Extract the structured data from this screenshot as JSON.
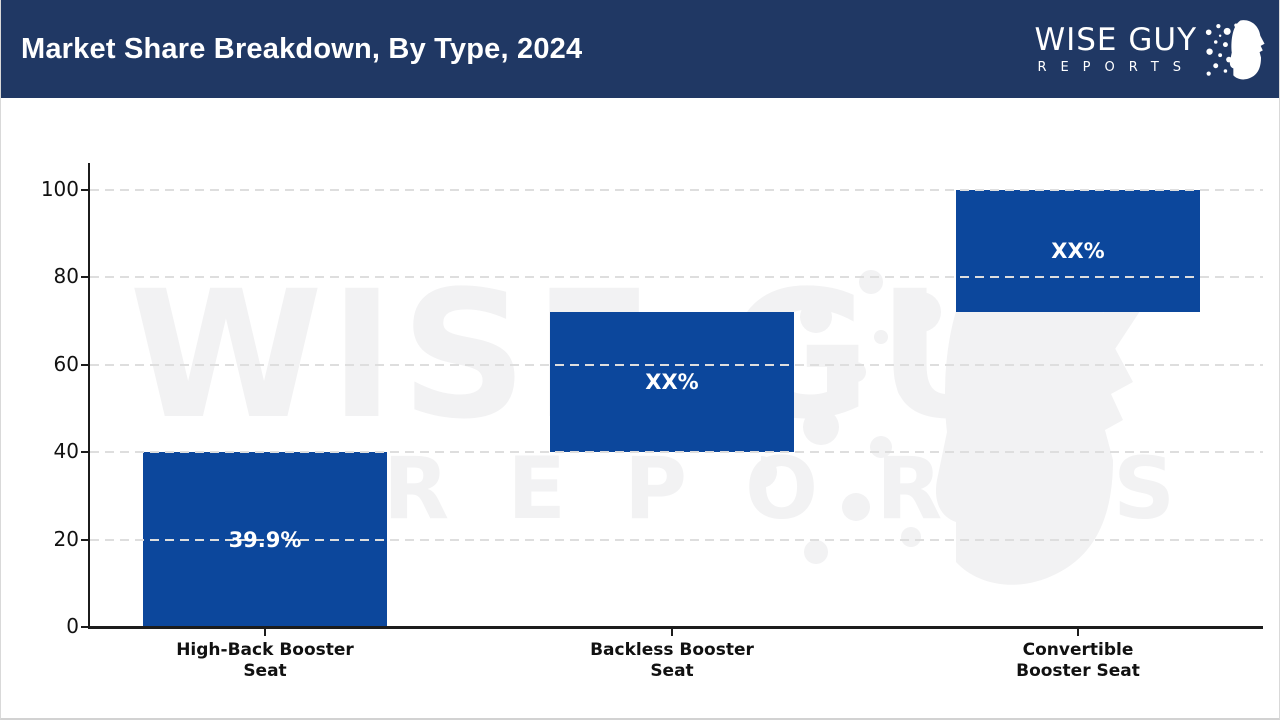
{
  "page": {
    "background": "#ffffff",
    "border_color": "#d9d9d9"
  },
  "header": {
    "title": "Market Share Breakdown, By Type, 2024",
    "bg_color": "#203864",
    "logo": {
      "line1": "WISE GUY",
      "line2": "REPORTS"
    }
  },
  "watermark": {
    "line1": "WISE GUY",
    "line2": "REPORTS",
    "color": "#f2f2f3"
  },
  "chart_data": {
    "type": "bar",
    "subtype": "waterfall",
    "title": "Market Share Breakdown, By Type, 2024",
    "categories": [
      [
        "High-Back Booster",
        "Seat"
      ],
      [
        "Backless Booster",
        "Seat"
      ],
      [
        "Convertible",
        "Booster Seat"
      ]
    ],
    "segments": [
      {
        "start": 0,
        "end": 39.9,
        "label": "39.9%"
      },
      {
        "start": 39.9,
        "end": 72,
        "label": "XX%"
      },
      {
        "start": 72,
        "end": 100,
        "label": "XX%"
      }
    ],
    "ylim": [
      0,
      100
    ],
    "yticks": [
      0,
      20,
      40,
      60,
      80,
      100
    ],
    "xlabel": "",
    "ylabel": "",
    "bar_color": "#0c479c",
    "value_label_color": "#ffffff",
    "grid": {
      "axis": "y",
      "style": "dashed",
      "color": "#dedede",
      "on_top_of_bars": true
    },
    "legend": "none"
  }
}
